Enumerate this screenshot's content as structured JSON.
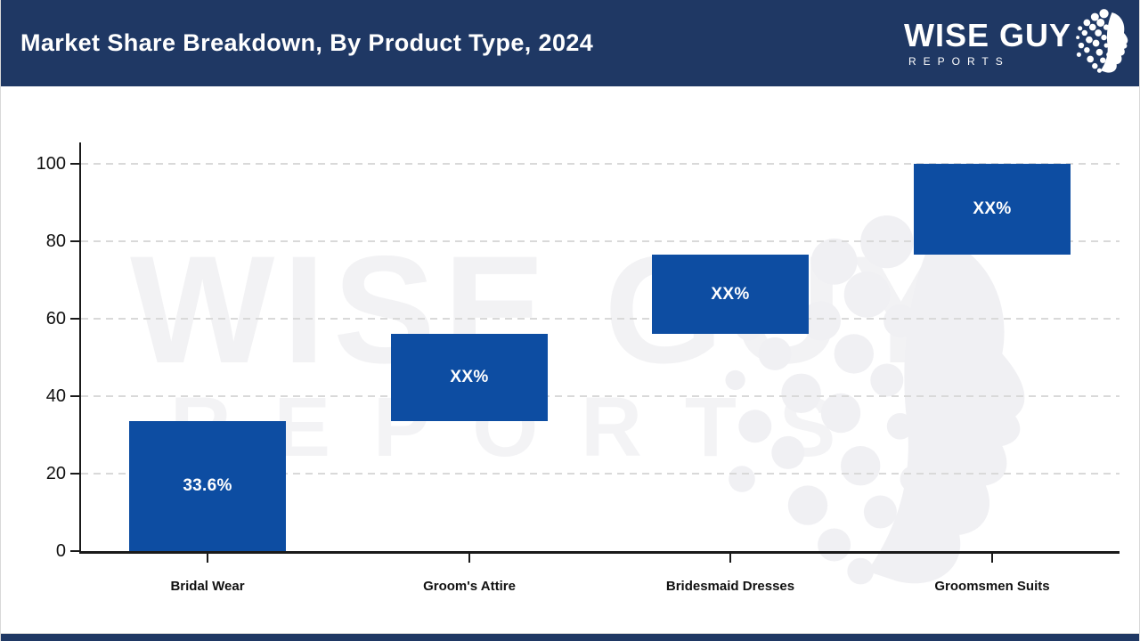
{
  "header": {
    "title": "Market Share Breakdown, By Product Type, 2024",
    "logo": {
      "line1": "WISE GUY",
      "line2": "REPORTS"
    }
  },
  "watermark": {
    "line1": "WISE GUY",
    "line2": "REPORTS"
  },
  "colors": {
    "header_bg": "#1f3864",
    "bar": "#0d4da2",
    "grid": "#d9d9d9",
    "axis": "#1a1a1a",
    "bar_label": "#ffffff",
    "watermark": "#f0f0f3"
  },
  "chart_data": {
    "type": "bar",
    "subtype": "waterfall",
    "title": "Market Share Breakdown, By Product Type, 2024",
    "categories": [
      "Bridal Wear",
      "Groom's Attire",
      "Bridesmaid Dresses",
      "Groomsmen Suits"
    ],
    "segments": [
      {
        "category": "Bridal Wear",
        "start": 0,
        "end": 33.6,
        "label": "33.6%"
      },
      {
        "category": "Groom's Attire",
        "start": 33.6,
        "end": 56,
        "label": "XX%"
      },
      {
        "category": "Bridesmaid Dresses",
        "start": 56,
        "end": 76.5,
        "label": "XX%"
      },
      {
        "category": "Groomsmen Suits",
        "start": 76.5,
        "end": 100,
        "label": "XX%"
      }
    ],
    "y_ticks": [
      0,
      20,
      40,
      60,
      80,
      100
    ],
    "ylim": [
      0,
      100
    ],
    "xlabel": "",
    "ylabel": "",
    "grid": true,
    "gridline_style": "dashed",
    "legend": "none",
    "bar_color": "#0d4da2"
  }
}
